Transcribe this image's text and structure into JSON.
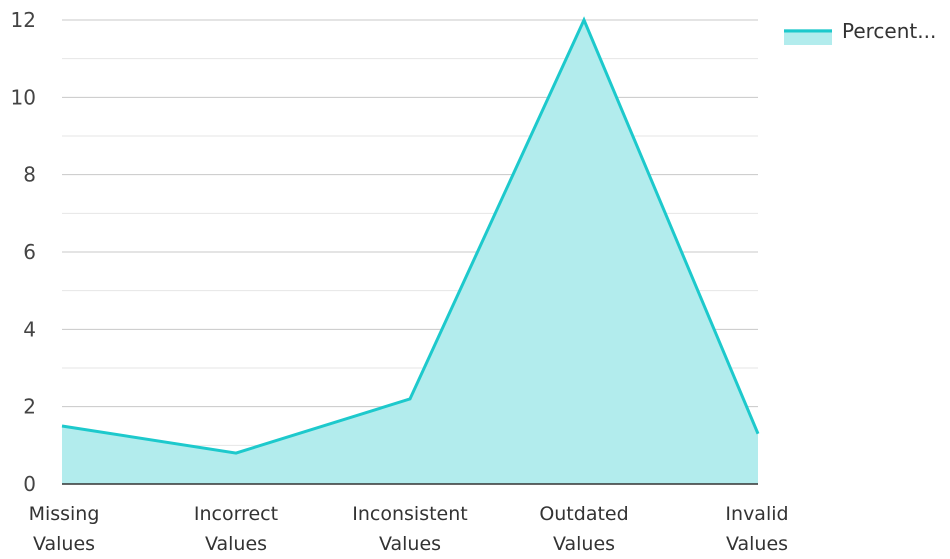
{
  "chart_data": {
    "type": "area",
    "categories": [
      "Missing Values",
      "Incorrect Values",
      "Inconsistent Values",
      "Outdated Values",
      "Invalid Values"
    ],
    "category_lines": [
      [
        "Missing",
        "Values"
      ],
      [
        "Incorrect",
        "Values"
      ],
      [
        "Inconsistent",
        "Values"
      ],
      [
        "Outdated",
        "Values"
      ],
      [
        "Invalid",
        "Values"
      ]
    ],
    "series": [
      {
        "name": "Percent...",
        "values": [
          1.5,
          0.8,
          2.2,
          12,
          1.3
        ]
      }
    ],
    "title": "",
    "xlabel": "",
    "ylabel": "",
    "ylim": [
      0,
      12
    ],
    "yticks": [
      0,
      2,
      4,
      6,
      8,
      10,
      12
    ],
    "grid": true,
    "legend_position": "top-right",
    "colors": {
      "line": "#1dc9cc",
      "fill": "#b2eced",
      "axis": "#333333"
    }
  }
}
